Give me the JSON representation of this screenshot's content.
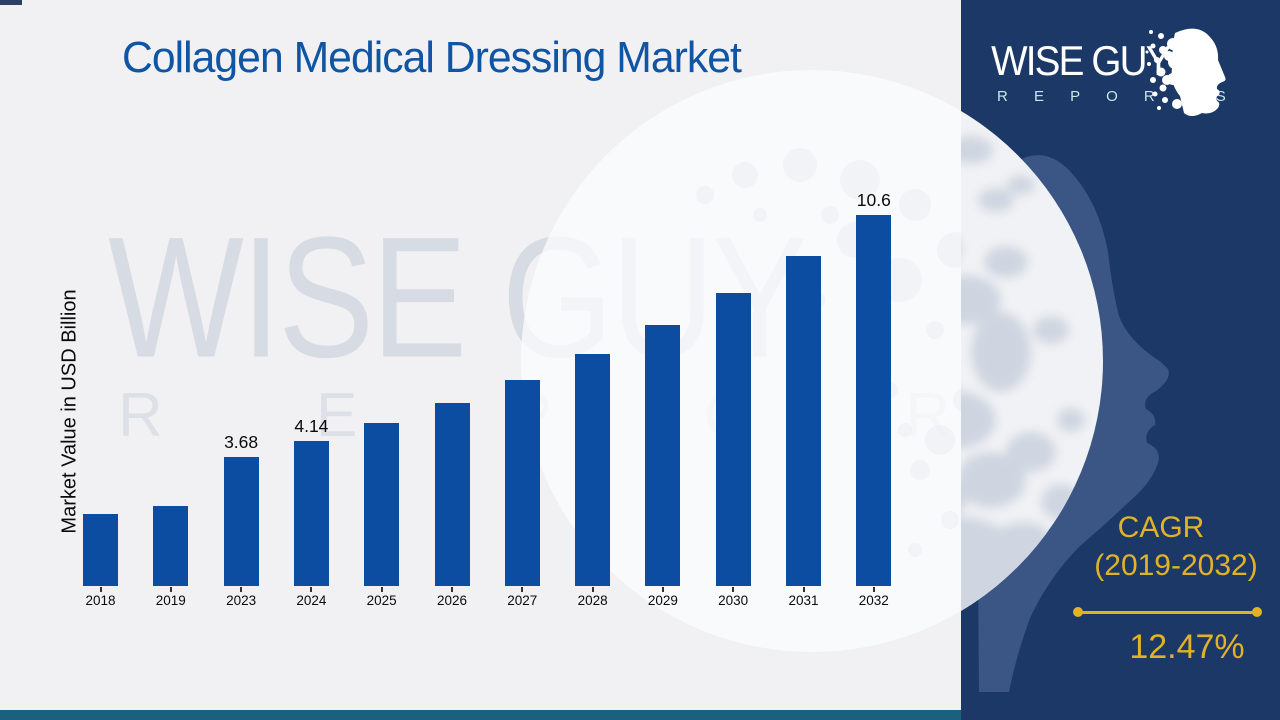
{
  "title": "Collagen Medical Dressing Market",
  "watermark": {
    "line1": "WISE GUY",
    "line2": "R E P O R T S"
  },
  "logo": {
    "line1": "WISE GUY",
    "line2": "R E P O R T S"
  },
  "cagr": {
    "label": "CAGR",
    "range": "(2019-2032)",
    "value": "12.47%"
  },
  "colors": {
    "bar": "#0d4da1",
    "title": "#0f55a4",
    "panel": "#1c3867",
    "gold": "#e2b226",
    "teal_strip": "#1b607f",
    "background": "#f1f1f3"
  },
  "chart_data": {
    "type": "bar",
    "title": "Collagen Medical Dressing Market",
    "xlabel": "",
    "ylabel": "Market Value in USD Billion",
    "categories": [
      "2018",
      "2019",
      "2023",
      "2024",
      "2025",
      "2026",
      "2027",
      "2028",
      "2029",
      "2030",
      "2031",
      "2032"
    ],
    "values": [
      2.05,
      2.3,
      3.68,
      4.14,
      4.66,
      5.24,
      5.89,
      6.62,
      7.45,
      8.38,
      9.42,
      10.6
    ],
    "bar_labels": [
      "",
      "",
      "3.68",
      "4.14",
      "",
      "",
      "",
      "",
      "",
      "",
      "",
      "10.6"
    ],
    "ylim": [
      0,
      11.5
    ],
    "grid": false,
    "legend": false
  }
}
